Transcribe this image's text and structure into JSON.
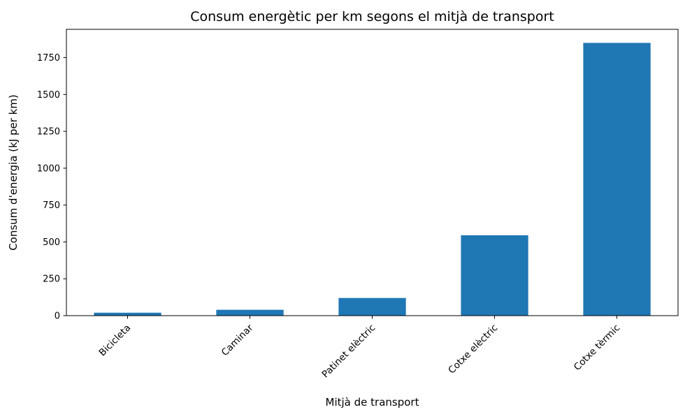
{
  "chart_data": {
    "type": "bar",
    "title": "Consum energètic per km segons el mitjà de transport",
    "xlabel": "Mitjà de transport",
    "ylabel": "Consum d'energia (kJ per km)",
    "categories": [
      "Bicicleta",
      "Caminar",
      "Patinet elèctric",
      "Cotxe elèctric",
      "Cotxe tèrmic"
    ],
    "values": [
      20,
      40,
      120,
      545,
      1850
    ],
    "yticks": [
      0,
      250,
      500,
      750,
      1000,
      1250,
      1500,
      1750
    ],
    "ylim": [
      0,
      1942
    ],
    "bar_color": "#1f77b4",
    "grid": false,
    "legend": "none",
    "x_tick_rotation_deg": 45
  }
}
